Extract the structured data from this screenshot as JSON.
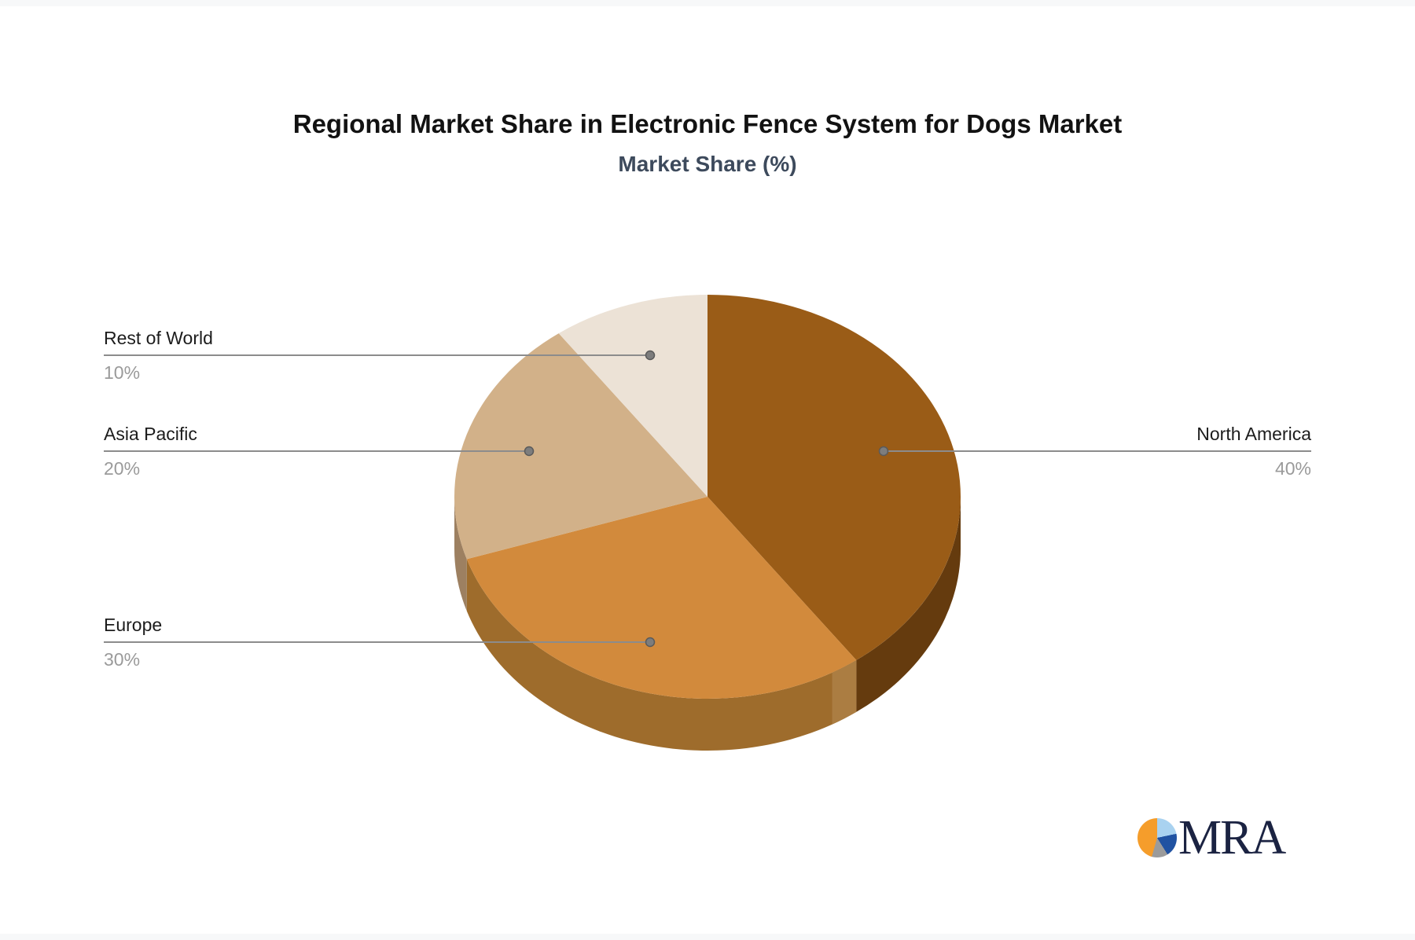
{
  "chart_data": {
    "type": "pie",
    "pie_3d": true,
    "title": "Regional Market Share in Electronic Fence System for Dogs Market",
    "subtitle": "Market Share (%)",
    "unit": "%",
    "direction": "clockwise",
    "start_angle_deg": 0,
    "slices": [
      {
        "label": "North America",
        "value": 40,
        "pct": "40%",
        "color": "#9a5c17",
        "side_color": "#653b0e",
        "label_side": "right"
      },
      {
        "label": "Europe",
        "value": 30,
        "pct": "30%",
        "color": "#d28a3c",
        "side_color": "#9e6c2c",
        "side_band_color": "#ab7d42",
        "label_side": "left"
      },
      {
        "label": "Asia Pacific",
        "value": 20,
        "pct": "20%",
        "color": "#d2b189",
        "side_color": "#9d8061",
        "label_side": "left"
      },
      {
        "label": "Rest of World",
        "value": 10,
        "pct": "10%",
        "color": "#ece2d6",
        "label_side": "left"
      }
    ],
    "connector_color": "#8c8c8c",
    "label_name_color": "#1c1c1c",
    "label_pct_color": "#9a9a9a"
  },
  "branding": {
    "logo_text": "MRA",
    "logo_text_color": "#1b2342",
    "logo_pie_colors": {
      "orange": "#f59d2b",
      "light_blue": "#a9d2f0",
      "dark_blue": "#2052a2",
      "gray": "#9b9b9b"
    }
  }
}
